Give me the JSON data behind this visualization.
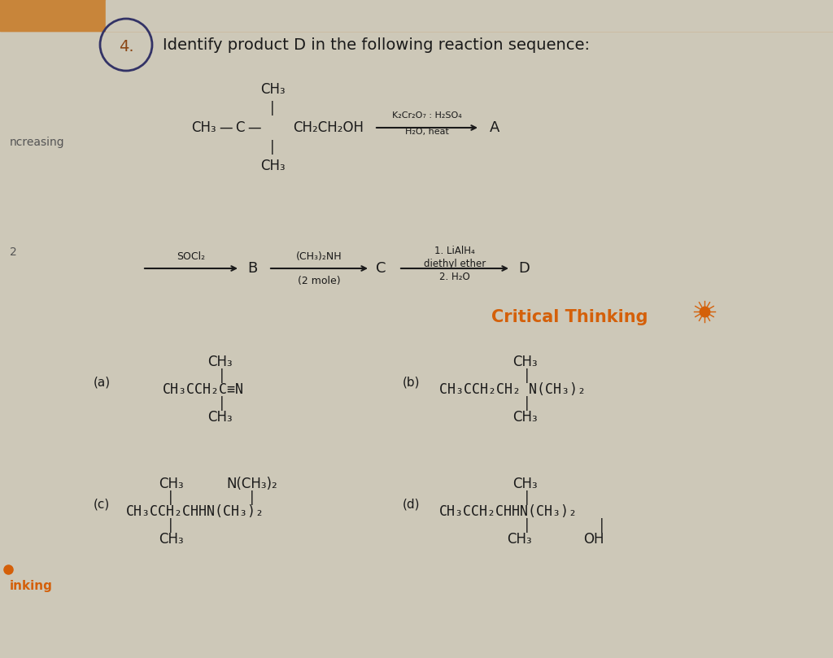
{
  "bg_color": "#cdc8b8",
  "title_number": "4.",
  "title_number_color": "#8B4513",
  "title_text": "Identify product D in the following reaction sequence:",
  "title_fontsize": 14,
  "circle_color": "#333366",
  "left_label": "ncreasing",
  "left_label2": "2",
  "bottom_left_label": "inking",
  "critical_thinking_text": "Critical Thinking",
  "critical_thinking_color": "#d4600a",
  "text_color": "#1a1a1a",
  "fs_main": 12,
  "fs_small": 9,
  "fs_label": 12
}
